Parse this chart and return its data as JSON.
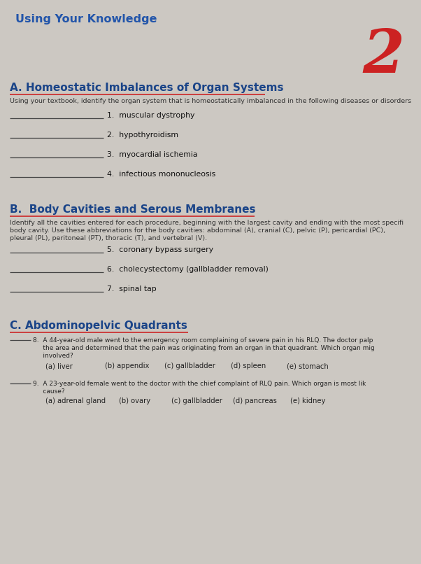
{
  "bg_color": "#ccc8c2",
  "title": "Using Your Knowledge",
  "title_color": "#2255aa",
  "chapter_num": "2",
  "chapter_num_color": "#cc2222",
  "section_A_title": "A. Homeostatic Imbalances of Organ Systems",
  "section_A_title_color": "#1a4488",
  "section_A_underline_color": "#cc3333",
  "section_A_intro": "Using your textbook, identify the organ system that is homeostatically imbalanced in the following diseases or disorders",
  "section_A_items": [
    "1.  muscular dystrophy",
    "2.  hypothyroidism",
    "3.  myocardial ischemia",
    "4.  infectious mononucleosis"
  ],
  "section_B_title": "B.  Body Cavities and Serous Membranes",
  "section_B_title_color": "#1a4488",
  "section_B_underline_color": "#cc3333",
  "section_B_intro_line1": "Identify all the cavities entered for each procedure, beginning with the largest cavity and ending with the most specifi",
  "section_B_intro_line2": "body cavity. Use these abbreviations for the body cavities: abdominal (A), cranial (C), pelvic (P), pericardial (PC),",
  "section_B_intro_line3": "pleural (PL), peritoneal (PT), thoracic (T), and vertebral (V).",
  "section_B_items": [
    "5.  coronary bypass surgery",
    "6.  cholecystectomy (gallbladder removal)",
    "7.  spinal tap"
  ],
  "section_C_title": "C. Abdominopelvic Quadrants",
  "section_C_title_color": "#1a4488",
  "section_C_underline_color": "#cc3333",
  "section_C_q8_line1": "8.  A 44-year-old male went to the emergency room complaining of severe pain in his RLQ. The doctor palp",
  "section_C_q8_line2": "     the area and determined that the pain was originating from an organ in that quadrant. Which organ mig",
  "section_C_q8_line3": "     involved?",
  "section_C_q8_choices_a": "(a) liver",
  "section_C_q8_choices_b": "(b) appendix",
  "section_C_q8_choices_c": "(c) gallbladder",
  "section_C_q8_choices_d": "(d) spleen",
  "section_C_q8_choices_e": "(e) stomach",
  "section_C_q9_line1": "9.  A 23-year-old female went to the doctor with the chief complaint of RLQ pain. Which organ is most lik",
  "section_C_q9_line2": "     cause?",
  "section_C_q9_choices_a": "(a) adrenal gland",
  "section_C_q9_choices_b": "(b) ovary",
  "section_C_q9_choices_c": "(c) gallbladder",
  "section_C_q9_choices_d": "(d) pancreas",
  "section_C_q9_choices_e": "(e) kidney",
  "line_color": "#444444",
  "text_color": "#111111",
  "body_text_color": "#222222",
  "intro_text_color": "#333333"
}
